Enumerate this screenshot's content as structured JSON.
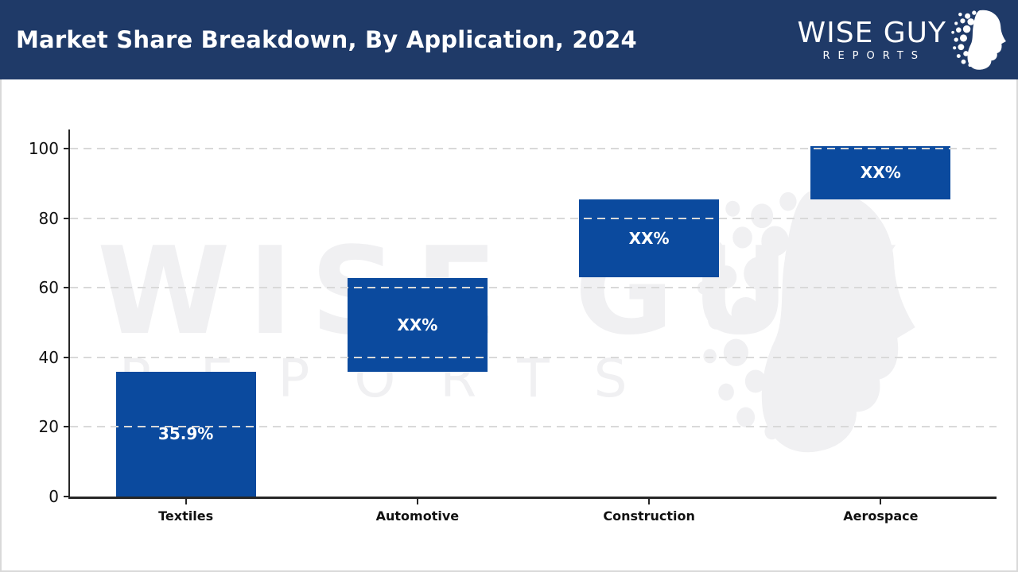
{
  "header": {
    "title": "Market Share Breakdown, By Application, 2024",
    "background": "#1f3a68",
    "logo": {
      "line1": "WISE GUY",
      "line2": "REPORTS",
      "face_icon": "dotted-face-profile"
    }
  },
  "watermark": {
    "line1": "WISE GUY",
    "line2": "REPORTS",
    "face_icon": "dotted-face-profile"
  },
  "chart_data": {
    "type": "bar",
    "subtype": "waterfall",
    "title": "Market Share Breakdown, By Application, 2024",
    "categories": [
      "Textiles",
      "Automotive",
      "Construction",
      "Aerospace"
    ],
    "segments": [
      {
        "category": "Textiles",
        "start": 0,
        "end": 35.9,
        "label": "35.9%"
      },
      {
        "category": "Automotive",
        "start": 35.9,
        "end": 62.8,
        "label": "XX%"
      },
      {
        "category": "Construction",
        "start": 63.0,
        "end": 85.4,
        "label": "XX%"
      },
      {
        "category": "Aerospace",
        "start": 85.4,
        "end": 100.7,
        "label": "XX%"
      }
    ],
    "yticks": [
      0,
      20,
      40,
      60,
      80,
      100
    ],
    "ylim": [
      0,
      105.5
    ],
    "xlabel": "",
    "ylabel": "",
    "grid": "horizontal-dashed-above-bars",
    "legend": "none",
    "bar_color": "#0b4a9e",
    "bar_label_color": "#ffffff",
    "grid_color": "#d9d9d9",
    "axis_color": "#262626"
  }
}
